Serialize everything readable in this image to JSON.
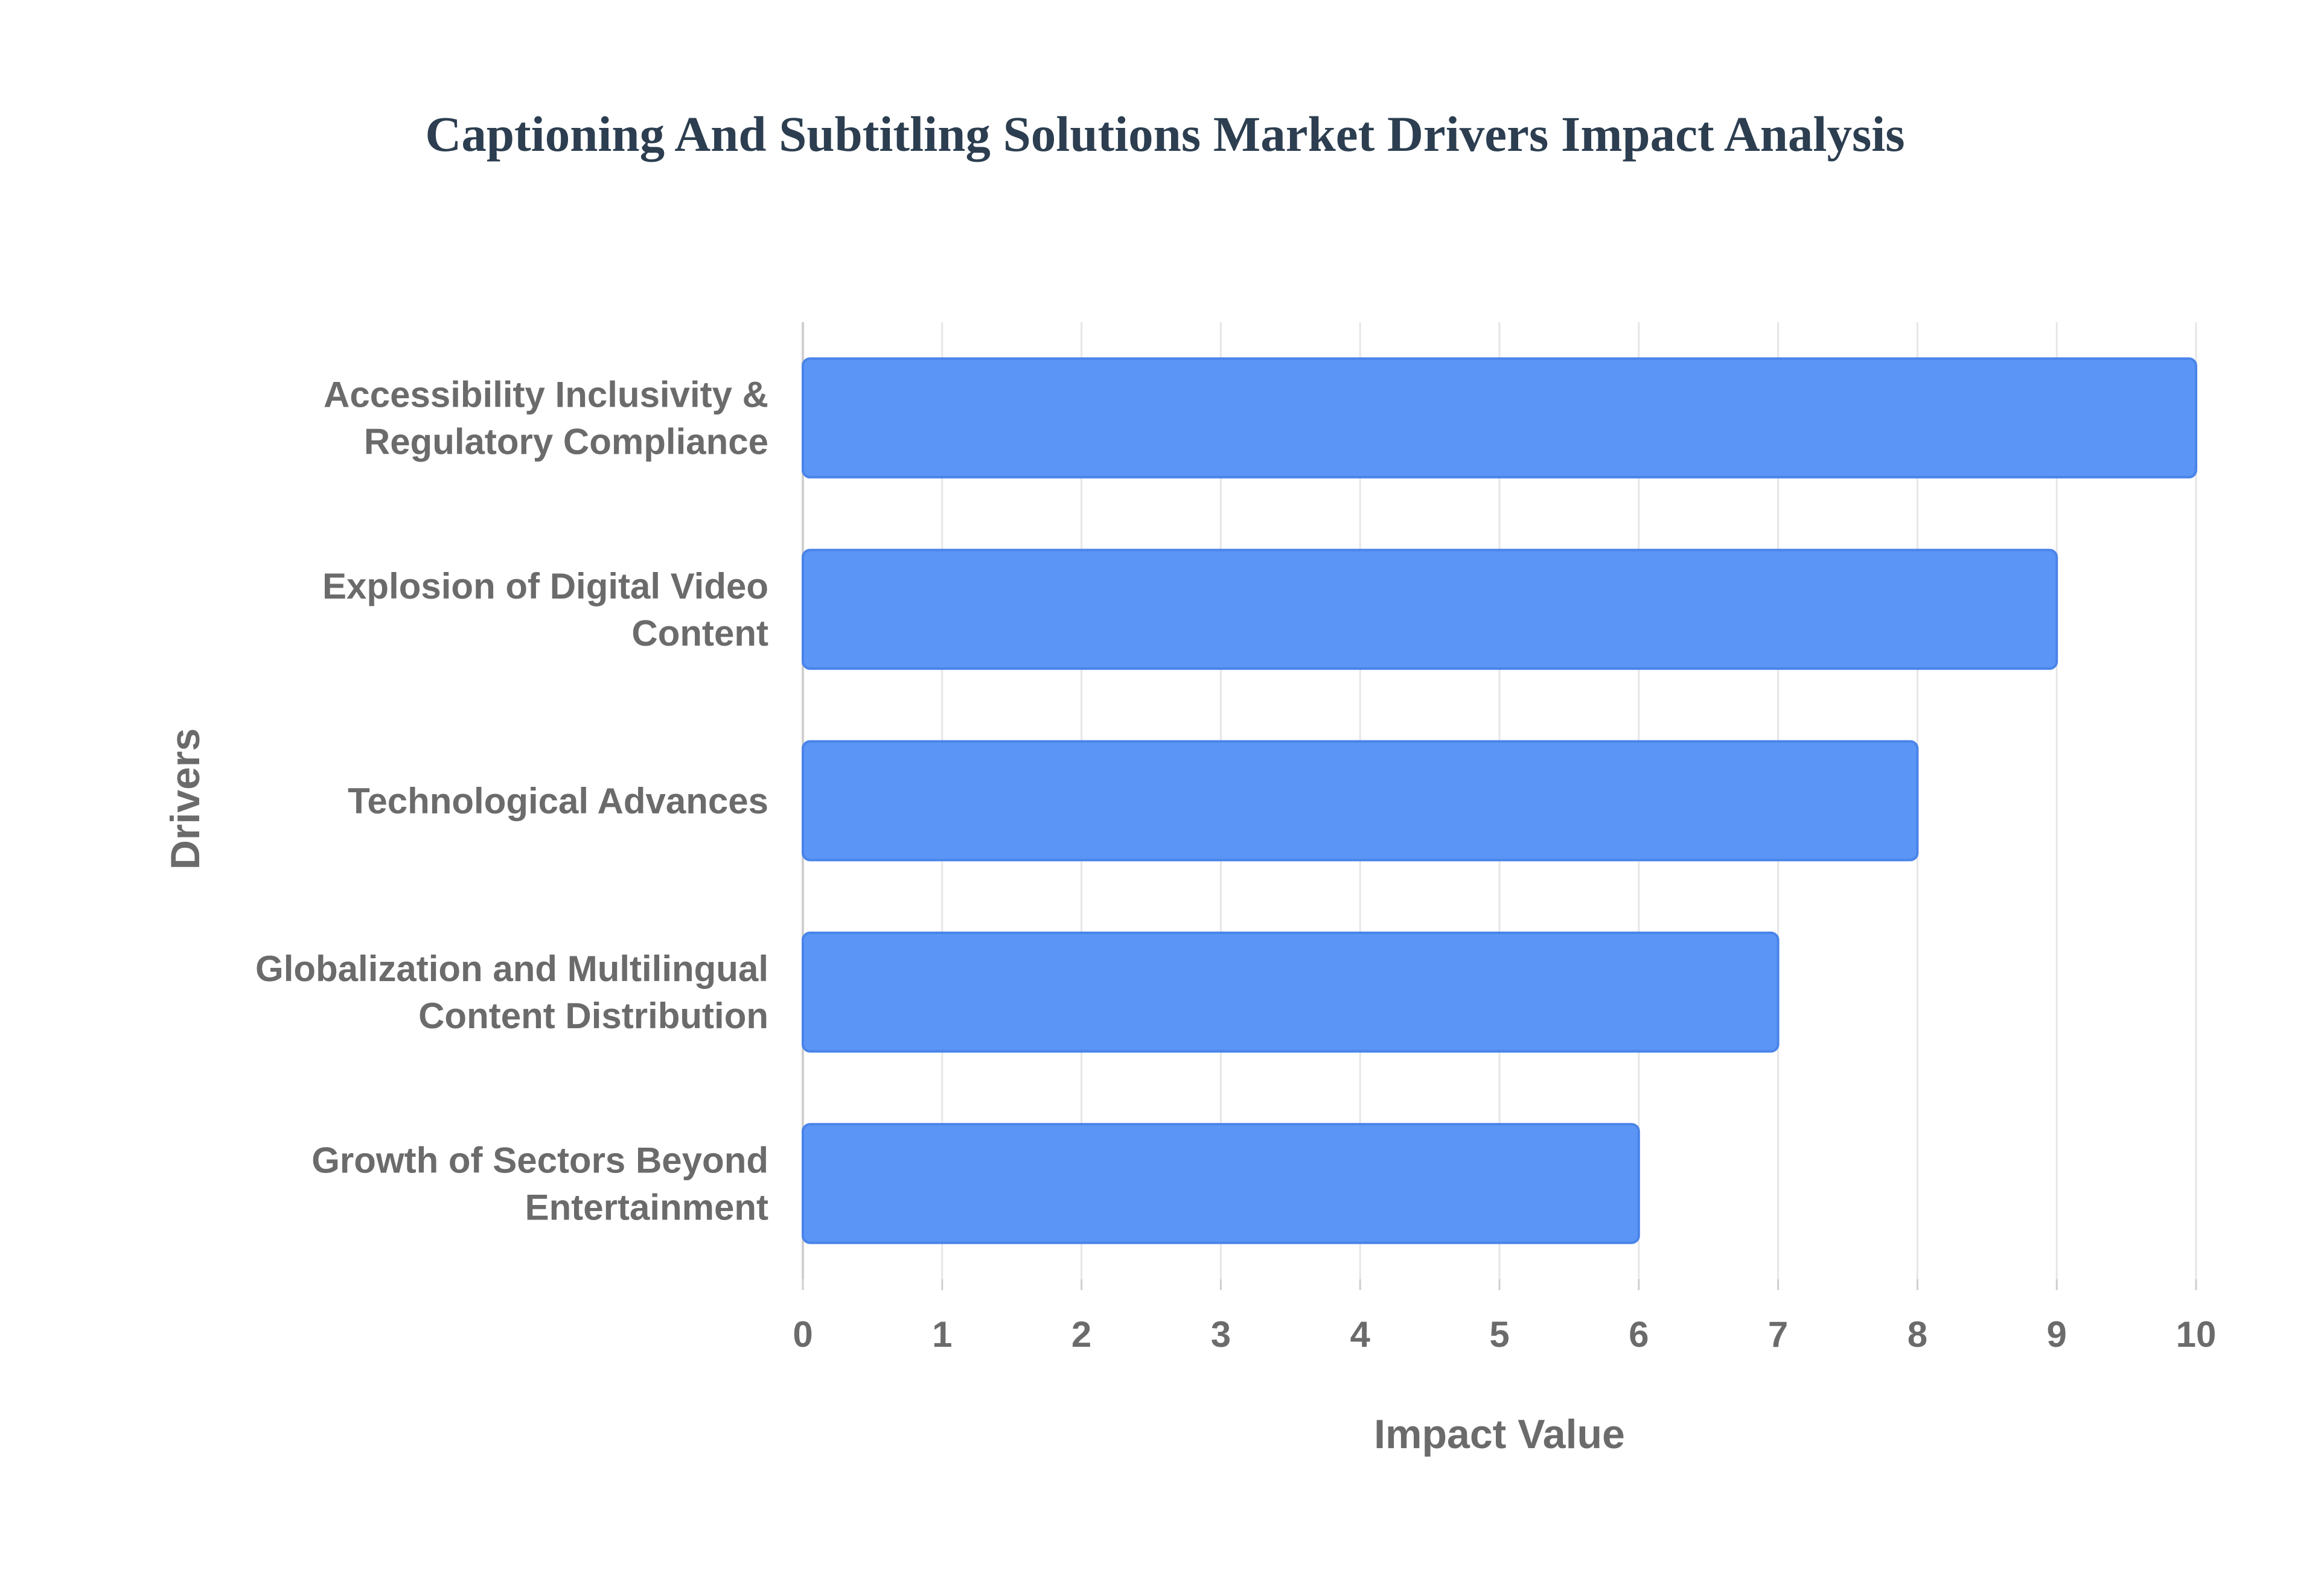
{
  "chart_data": {
    "type": "bar",
    "orientation": "horizontal",
    "title": "Captioning And Subtitling Solutions Market Drivers Impact Analysis",
    "xlabel": "Impact Value",
    "ylabel": "Drivers",
    "categories": [
      [
        "Accessibility Inclusivity &",
        "Regulatory Compliance"
      ],
      [
        "Explosion of Digital Video",
        "Content"
      ],
      [
        "Technological Advances"
      ],
      [
        "Globalization and Multilingual",
        "Content Distribution"
      ],
      [
        "Growth of Sectors Beyond",
        "Entertainment"
      ]
    ],
    "values": [
      10,
      9,
      8,
      7,
      6
    ],
    "xlim": [
      0,
      10
    ],
    "xticks": [
      "0",
      "1",
      "2",
      "3",
      "4",
      "5",
      "6",
      "7",
      "8",
      "9",
      "10"
    ],
    "grid": true,
    "legend": "none",
    "colors": {
      "bar_fill": "#5b95f5",
      "bar_stroke": "#4a84ea",
      "grid": "#e6e6e6",
      "axis": "#cfcfcf",
      "title": "#2c3e50",
      "text": "#6b6b6b"
    }
  }
}
